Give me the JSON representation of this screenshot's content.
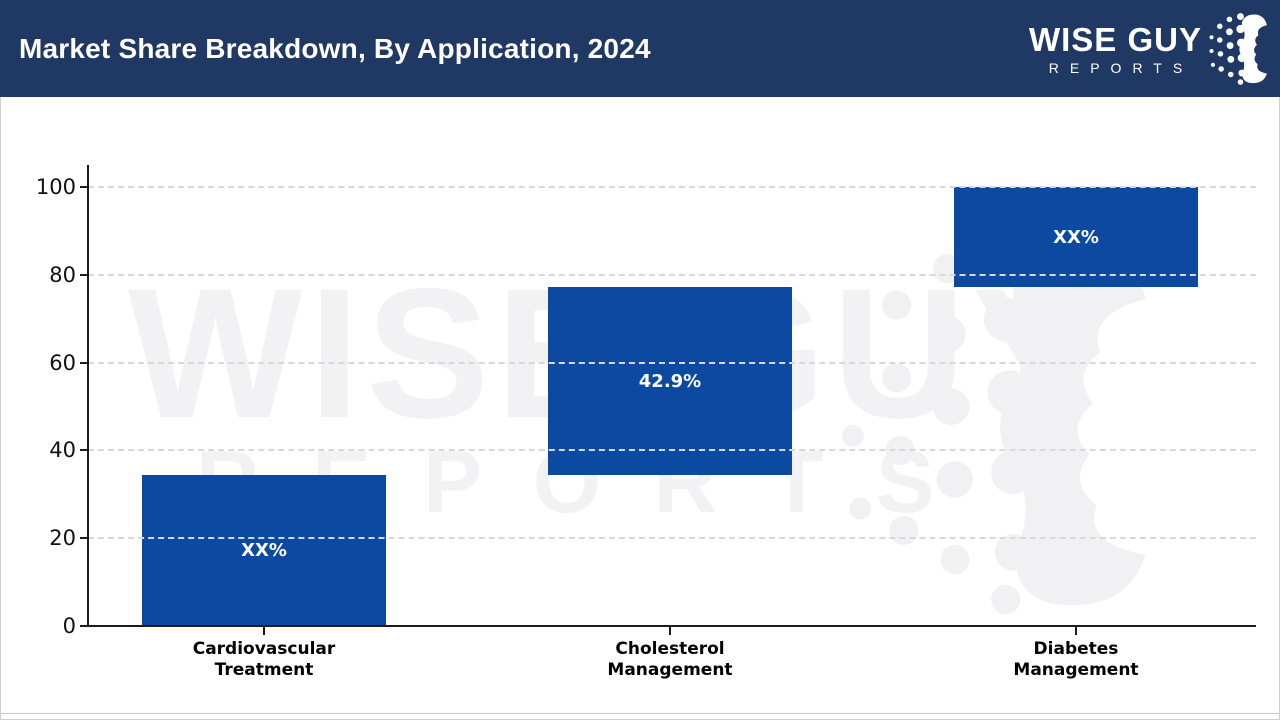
{
  "header": {
    "title": "Market Share Breakdown, By Application, 2024",
    "logo": {
      "line1": "WISE GUY",
      "line2": "REPORTS"
    }
  },
  "watermark": {
    "line1": "WISE GUY",
    "line2": "R E P O R T S"
  },
  "chart_data": {
    "type": "bar",
    "variant": "waterfall-segments",
    "title": "Market Share Breakdown, By Application, 2024",
    "categories": [
      "Cardiovascular\nTreatment",
      "Cholesterol\nManagement",
      "Diabetes\nManagement"
    ],
    "segments": [
      {
        "category": "Cardiovascular Treatment",
        "start": 0,
        "end": 34.3,
        "label": "XX%"
      },
      {
        "category": "Cholesterol Management",
        "start": 34.3,
        "end": 77.2,
        "label": "42.9%"
      },
      {
        "category": "Diabetes Management",
        "start": 77.2,
        "end": 100,
        "label": "XX%"
      }
    ],
    "yticks": [
      0,
      20,
      40,
      60,
      80,
      100
    ],
    "ylim": [
      0,
      100
    ],
    "xlabel": "",
    "ylabel": "",
    "grid": "horizontal-dashed-over-bars",
    "legend": "none",
    "bar_color": "#0c4aa2",
    "bar_label_color": "#ffffff"
  },
  "colors": {
    "header_bg": "#1f3864",
    "bar": "#0c4aa2",
    "gridline": "#d8d8d8",
    "axis": "#1c1c1c",
    "watermark": "#f2f2f5"
  }
}
